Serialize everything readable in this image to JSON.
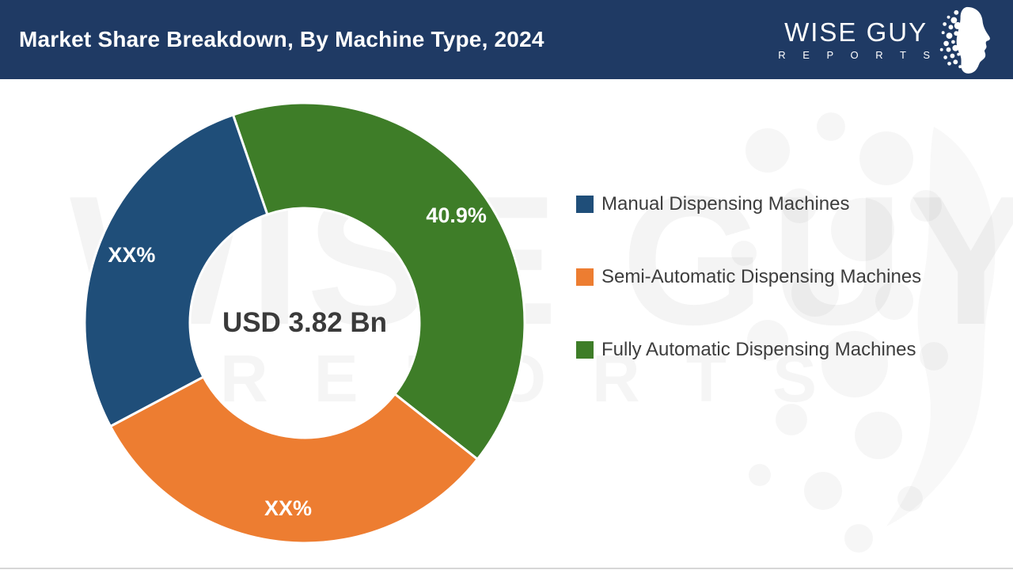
{
  "header": {
    "title": "Market Share Breakdown, By Machine Type, 2024",
    "bg_color": "#1f3a64",
    "logo": {
      "line1": "WISE GUY",
      "line2": "R E P O R T S"
    }
  },
  "chart_data": {
    "type": "donut",
    "title": "Market Share Breakdown, By Machine Type, 2024",
    "center_label": "USD 3.82 Bn",
    "start_angle_deg": -19,
    "direction": "clockwise",
    "outer_radius_px": 278,
    "inner_radius_px": 145,
    "segments": [
      {
        "name": "Fully Automatic Dispensing Machines",
        "value_pct": 40.9,
        "display_label": "40.9%",
        "color": "#3e7d28"
      },
      {
        "name": "Semi-Automatic Dispensing Machines",
        "value_pct": 31.6,
        "display_label": "XX%",
        "color": "#ed7d31"
      },
      {
        "name": "Manual Dispensing Machines",
        "value_pct": 27.5,
        "display_label": "XX%",
        "color": "#1f4e79"
      }
    ],
    "legend_position": "right"
  },
  "legend": {
    "items": [
      {
        "label": "Manual Dispensing Machines",
        "color": "#1f4e79"
      },
      {
        "label": "Semi-Automatic Dispensing Machines",
        "color": "#ed7d31"
      },
      {
        "label": "Fully Automatic Dispensing Machines",
        "color": "#3e7d28"
      }
    ]
  },
  "watermark": {
    "line1": "WISE GUY",
    "line2": "REPORTS"
  },
  "footer": {
    "rule_color": "#d6d6d6"
  }
}
